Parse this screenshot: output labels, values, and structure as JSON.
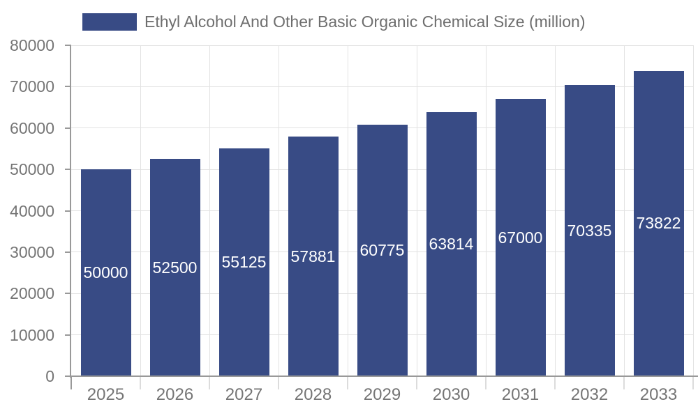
{
  "chart_data": {
    "type": "bar",
    "title": "",
    "legend": "Ethyl Alcohol And Other Basic Organic Chemical Size (million)",
    "categories": [
      "2025",
      "2026",
      "2027",
      "2028",
      "2029",
      "2030",
      "2031",
      "2032",
      "2033"
    ],
    "values": [
      50000,
      52500,
      55125,
      57881,
      60775,
      63814,
      67000,
      70335,
      73822
    ],
    "xlabel": "",
    "ylabel": "",
    "ylim": [
      0,
      80000
    ],
    "y_ticks": [
      0,
      10000,
      20000,
      30000,
      40000,
      50000,
      60000,
      70000,
      80000
    ],
    "grid": true,
    "legend_position": "top",
    "value_labels_inside_bars": true,
    "colors": {
      "bar": "#384b85",
      "bar_label": "#ffffff",
      "axis_line": "#999999",
      "grid_line": "#e2e2e2",
      "boundary_tick": "#dcdcdc",
      "tick_label": "#757575",
      "legend_text": "#6e6e6e",
      "background": "#ffffff"
    }
  }
}
